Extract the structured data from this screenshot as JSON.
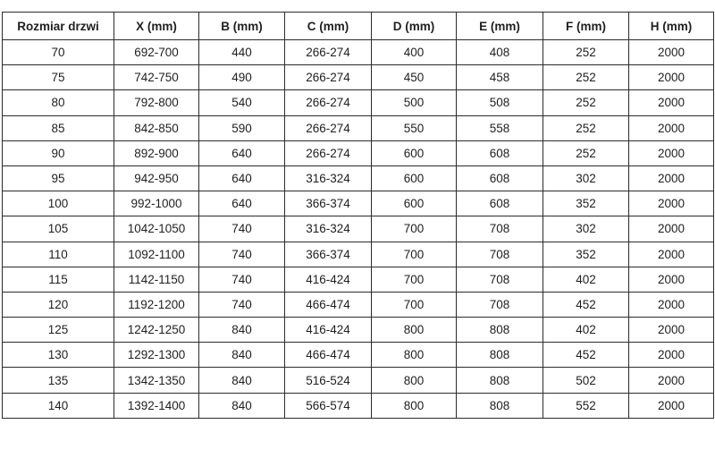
{
  "chart_data": {
    "type": "table",
    "columns": [
      "Rozmiar drzwi",
      "X (mm)",
      "B (mm)",
      "C (mm)",
      "D (mm)",
      "E (mm)",
      "F (mm)",
      "H (mm)"
    ],
    "rows": [
      [
        "70",
        "692-700",
        "440",
        "266-274",
        "400",
        "408",
        "252",
        "2000"
      ],
      [
        "75",
        "742-750",
        "490",
        "266-274",
        "450",
        "458",
        "252",
        "2000"
      ],
      [
        "80",
        "792-800",
        "540",
        "266-274",
        "500",
        "508",
        "252",
        "2000"
      ],
      [
        "85",
        "842-850",
        "590",
        "266-274",
        "550",
        "558",
        "252",
        "2000"
      ],
      [
        "90",
        "892-900",
        "640",
        "266-274",
        "600",
        "608",
        "252",
        "2000"
      ],
      [
        "95",
        "942-950",
        "640",
        "316-324",
        "600",
        "608",
        "302",
        "2000"
      ],
      [
        "100",
        "992-1000",
        "640",
        "366-374",
        "600",
        "608",
        "352",
        "2000"
      ],
      [
        "105",
        "1042-1050",
        "740",
        "316-324",
        "700",
        "708",
        "302",
        "2000"
      ],
      [
        "110",
        "1092-1100",
        "740",
        "366-374",
        "700",
        "708",
        "352",
        "2000"
      ],
      [
        "115",
        "1142-1150",
        "740",
        "416-424",
        "700",
        "708",
        "402",
        "2000"
      ],
      [
        "120",
        "1192-1200",
        "740",
        "466-474",
        "700",
        "708",
        "452",
        "2000"
      ],
      [
        "125",
        "1242-1250",
        "840",
        "416-424",
        "800",
        "808",
        "402",
        "2000"
      ],
      [
        "130",
        "1292-1300",
        "840",
        "466-474",
        "800",
        "808",
        "452",
        "2000"
      ],
      [
        "135",
        "1342-1350",
        "840",
        "516-524",
        "800",
        "808",
        "502",
        "2000"
      ],
      [
        "140",
        "1392-1400",
        "840",
        "566-574",
        "800",
        "808",
        "552",
        "2000"
      ]
    ],
    "border_color": "#2b2b2b",
    "text_color": "#1f1f1f",
    "background_color": "#ffffff"
  }
}
